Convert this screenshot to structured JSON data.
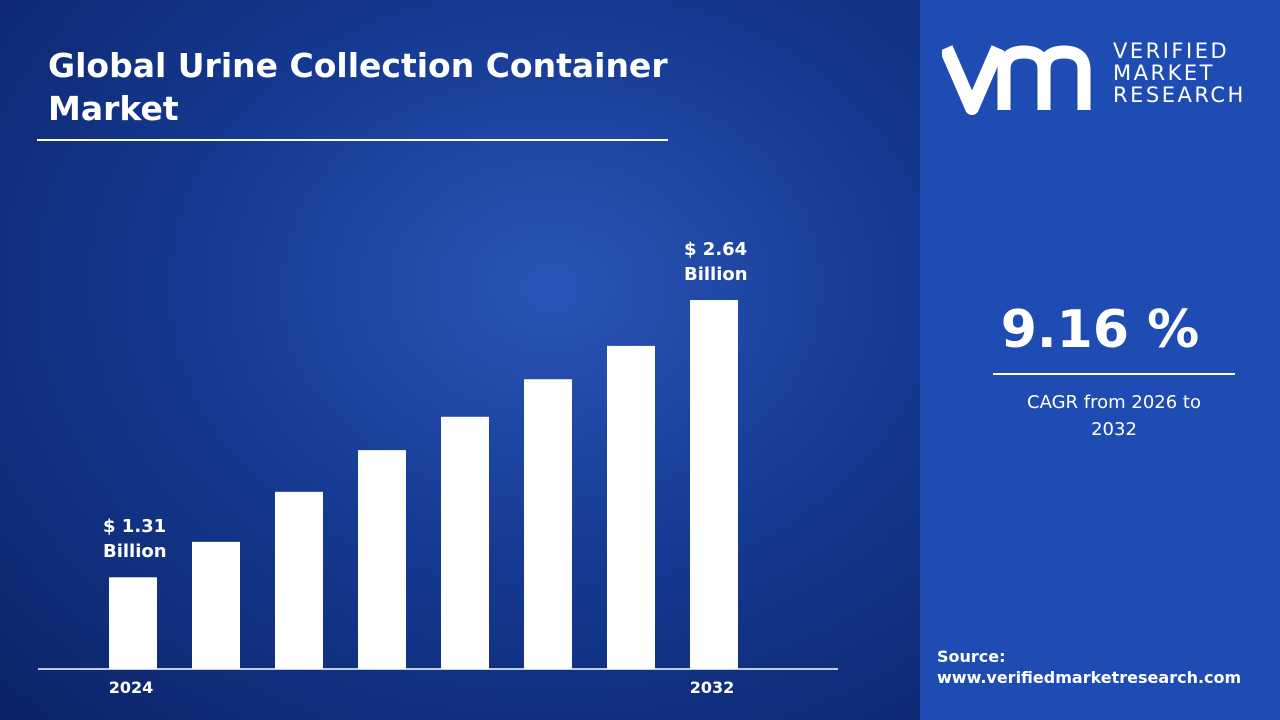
{
  "chart_data": {
    "type": "bar",
    "title": "Global Urine Collection Container Market",
    "categories": [
      "2024",
      null,
      null,
      null,
      null,
      null,
      null,
      "2032"
    ],
    "values": [
      1.31,
      1.48,
      1.72,
      1.92,
      2.08,
      2.26,
      2.42,
      2.64
    ],
    "value_labels": [
      "$ 1.31 Billion",
      null,
      null,
      null,
      null,
      null,
      null,
      "$ 2.64 Billion"
    ],
    "color": "#ffffff",
    "ylim": [
      0.87,
      3.0
    ]
  },
  "cagr": {
    "value": "9.16 %",
    "label": "CAGR from 2026 to 2032"
  },
  "logo": {
    "lines": [
      "VERIFIED",
      "MARKET",
      "RESEARCH"
    ]
  },
  "source": {
    "label": "Source:",
    "url": "www.verifiedmarketresearch.com"
  }
}
